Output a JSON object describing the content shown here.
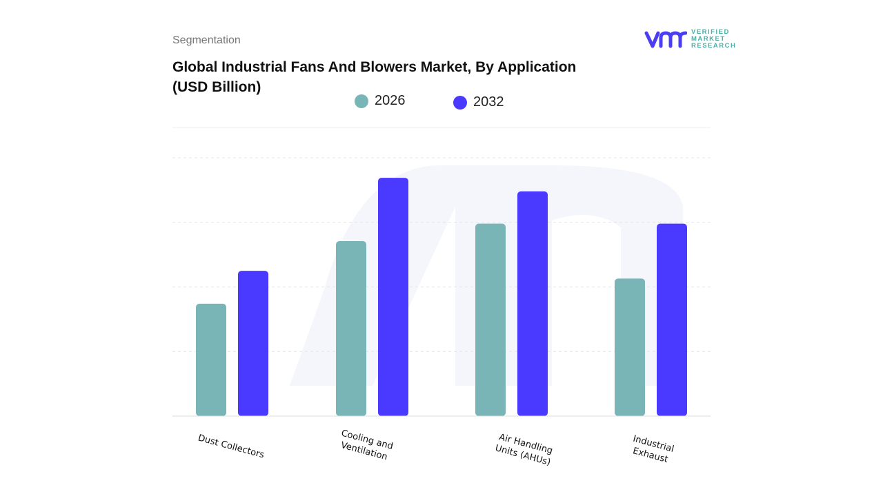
{
  "header": {
    "segment_label": "Segmentation",
    "title": "Global Industrial Fans And Blowers Market, By Application (USD Billion)"
  },
  "logo": {
    "mark": "vmr",
    "text": "VERIFIED MARKET RESEARCH",
    "colors": {
      "mark": "#4b3df0",
      "text": "#45b0a8"
    }
  },
  "chart_data": {
    "type": "bar",
    "title": "Global Industrial Fans And Blowers Market, By Application (USD Billion)",
    "categories": [
      "Dust Collectors",
      "Cooling and Ventilation",
      "Air Handling Units (AHUs)",
      "Industrial Exhaust"
    ],
    "series": [
      {
        "name": "2026",
        "color": "#79b4b7",
        "values": [
          1.74,
          2.71,
          2.98,
          2.13
        ]
      },
      {
        "name": "2032",
        "color": "#4a3aff",
        "values": [
          2.25,
          3.69,
          3.48,
          2.98
        ]
      }
    ],
    "ylim": [
      0,
      4.5
    ],
    "y_axis_labels_shown": false,
    "grid": true,
    "legend_placement": "top-center"
  }
}
